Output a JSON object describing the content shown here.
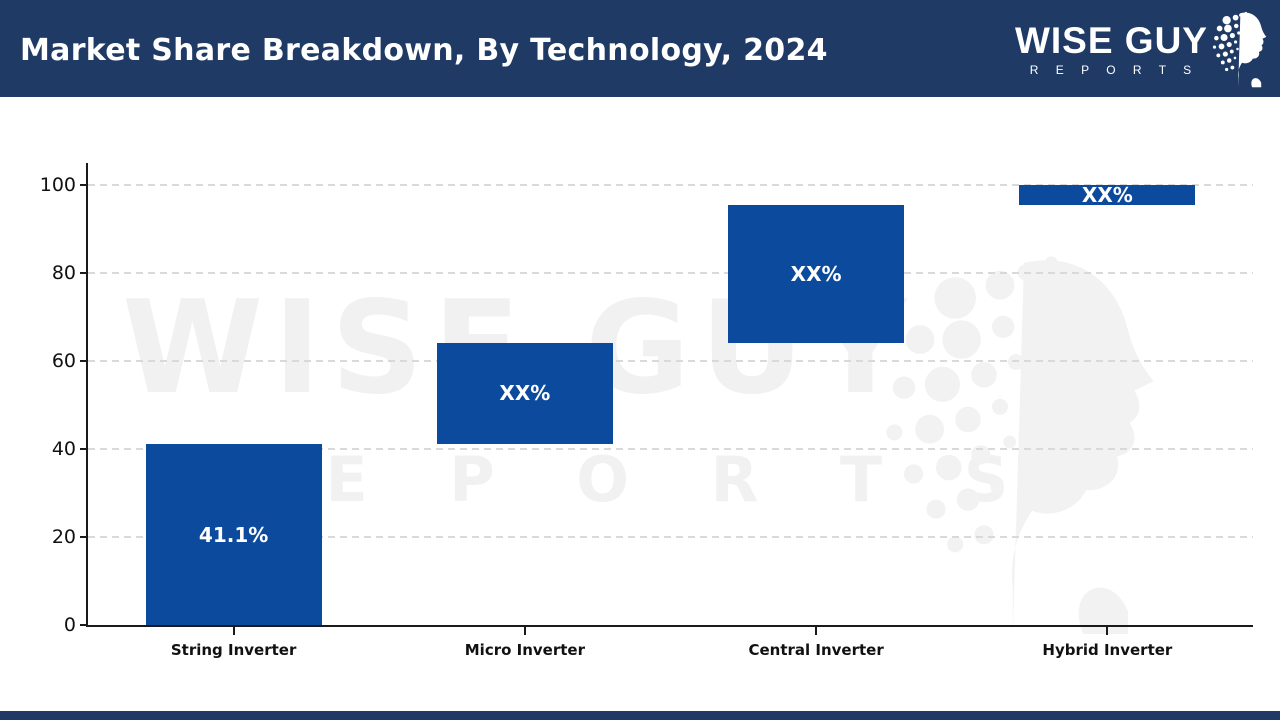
{
  "header": {
    "title": "Market Share Breakdown, By Technology, 2024",
    "bg_color": "#203a66",
    "logo": {
      "line1": "WISE GUY",
      "line2": "R E P O R T S"
    }
  },
  "watermark": {
    "line1": "WISE GUY",
    "line2": "R E P O R T S"
  },
  "chart_data": {
    "type": "bar",
    "subtype": "waterfall",
    "title": "Market Share Breakdown, By Technology, 2024",
    "categories": [
      "String Inverter",
      "Micro Inverter",
      "Central Inverter",
      "Hybrid Inverter"
    ],
    "segments": [
      {
        "category": "String Inverter",
        "start": 0,
        "end": 41.1,
        "label": "41.1%"
      },
      {
        "category": "Micro Inverter",
        "start": 41.1,
        "end": 64.2,
        "label": "XX%"
      },
      {
        "category": "Central Inverter",
        "start": 64.2,
        "end": 95.4,
        "label": "XX%"
      },
      {
        "category": "Hybrid Inverter",
        "start": 95.5,
        "end": 100,
        "label": "XX%"
      }
    ],
    "ylim": [
      0,
      100
    ],
    "yticks": [
      0,
      20,
      40,
      60,
      80,
      100
    ],
    "grid": "horizontal dashed, behind bars",
    "legend": "none",
    "bar_color": "#0c4a9e",
    "bar_label_color": "#ffffff",
    "axis_color": "#1a1a1a",
    "gridline_color": "#d9d9d9"
  }
}
